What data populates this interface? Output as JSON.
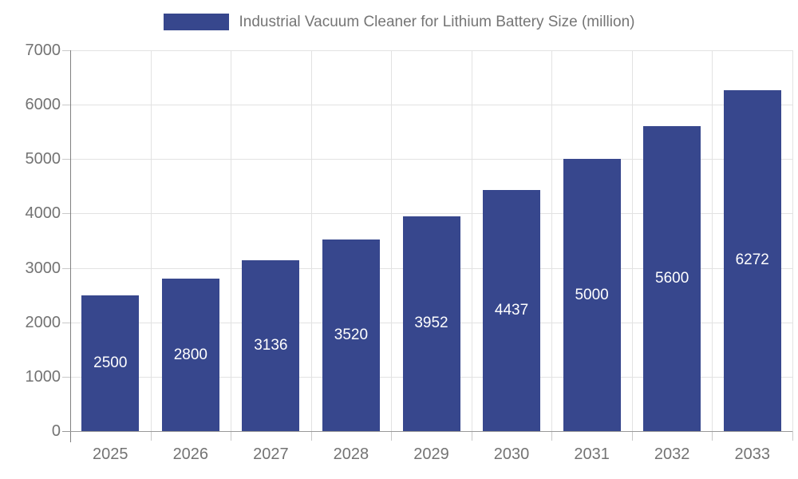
{
  "chart_data": {
    "type": "bar",
    "title": "Industrial Vacuum Cleaner for Lithium Battery Size (million)",
    "categories": [
      "2025",
      "2026",
      "2027",
      "2028",
      "2029",
      "2030",
      "2031",
      "2032",
      "2033"
    ],
    "values": [
      2500,
      2800,
      3136,
      3520,
      3952,
      4437,
      5000,
      5600,
      6272
    ],
    "series": [
      {
        "name": "Industrial Vacuum Cleaner for Lithium Battery Size (million)",
        "values": [
          2500,
          2800,
          3136,
          3520,
          3952,
          4437,
          5000,
          5600,
          6272
        ]
      }
    ],
    "xlabel": "",
    "ylabel": "",
    "ylim": [
      0,
      7000
    ],
    "yticks": [
      0,
      1000,
      2000,
      3000,
      4000,
      5000,
      6000,
      7000
    ],
    "grid": true,
    "legend_position": "top",
    "bar_label_position": "inside-center",
    "colors": {
      "bar": "#37478D",
      "bar_label": "#FFFFFF",
      "legend_text": "#757575",
      "axis_label": "#737373",
      "gridline": "#E2E2E2",
      "x_axis_line": "#999999",
      "y_axis_line": "#808080",
      "tick": "#C9C9C9",
      "background": "#FFFFFF"
    }
  }
}
